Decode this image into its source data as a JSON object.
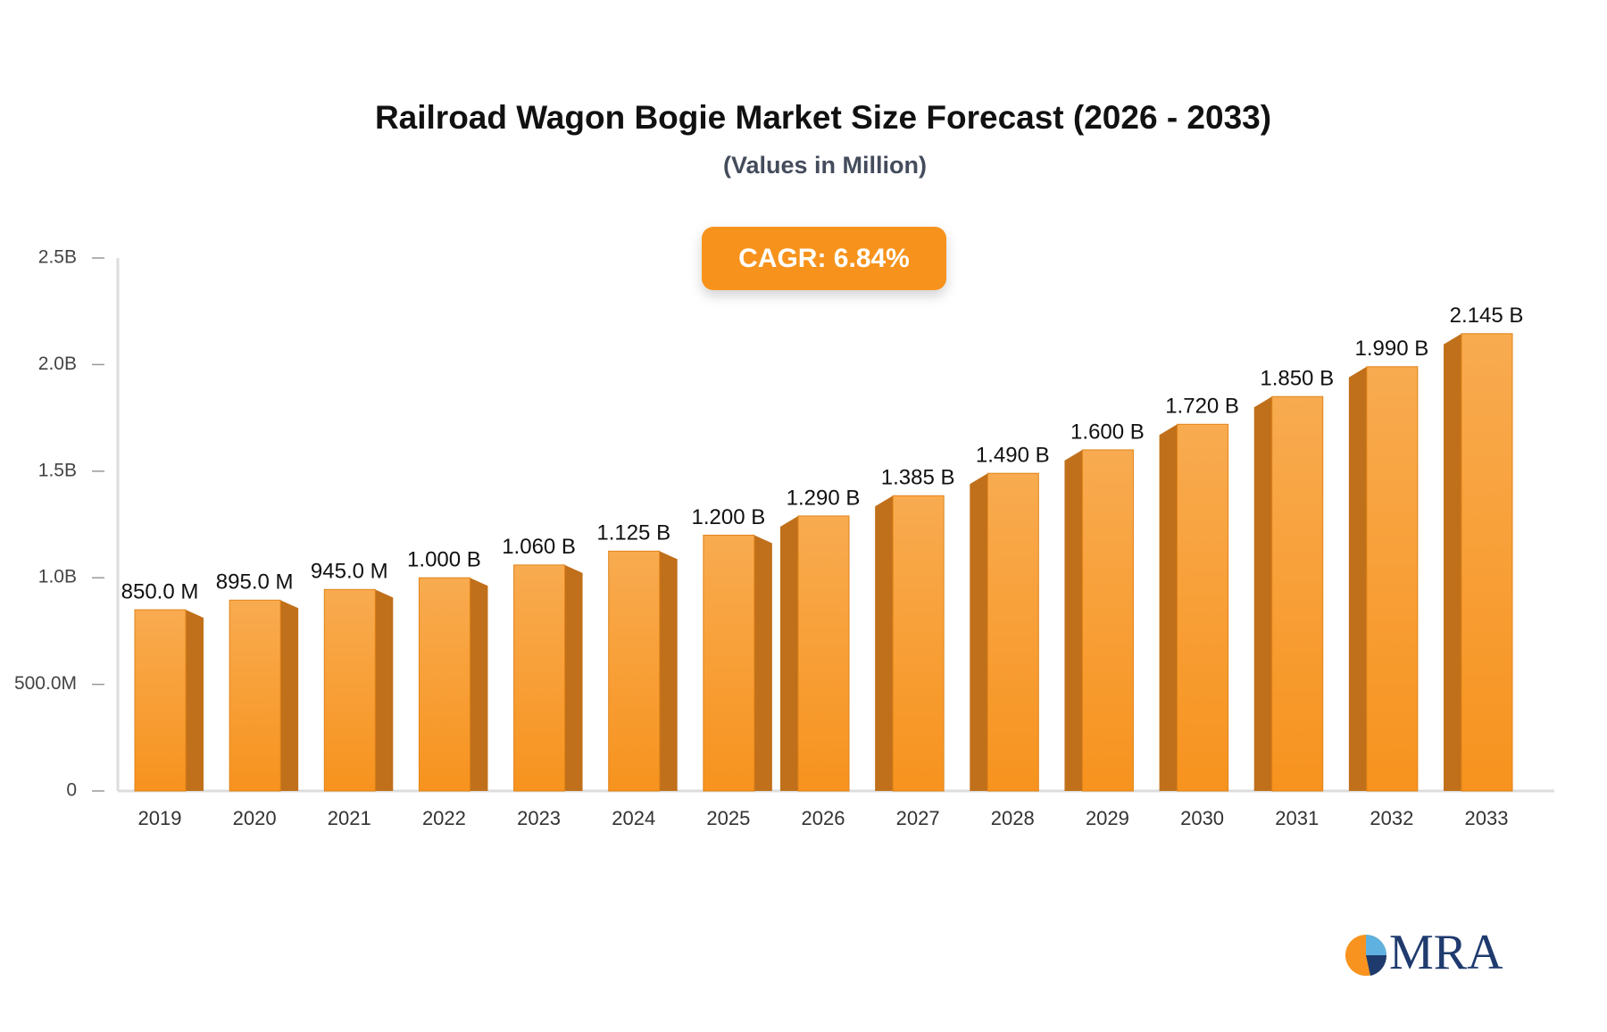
{
  "chart_data": {
    "type": "bar",
    "title": "Railroad Wagon Bogie Market Size Forecast (2026 - 2033)",
    "subtitle": "(Values in Million)",
    "annotation": "CAGR: 6.84%",
    "logo": "MRA",
    "categories": [
      "2019",
      "2020",
      "2021",
      "2022",
      "2023",
      "2024",
      "2025",
      "2026",
      "2027",
      "2028",
      "2029",
      "2030",
      "2031",
      "2032",
      "2033"
    ],
    "values": [
      850,
      895,
      945,
      1000,
      1060,
      1125,
      1200,
      1290,
      1385,
      1490,
      1600,
      1720,
      1850,
      1990,
      2145
    ],
    "value_labels": [
      "850.0 M",
      "895.0 M",
      "945.0 M",
      "1.000 B",
      "1.060 B",
      "1.125 B",
      "1.200 B",
      "1.290 B",
      "1.385 B",
      "1.490 B",
      "1.600 B",
      "1.720 B",
      "1.850 B",
      "1.990 B",
      "2.145 B"
    ],
    "color": "#f59a30",
    "ylim": [
      0,
      2500
    ],
    "yticks": [
      0,
      {
        "value": 500,
        "label": "500.0M"
      },
      {
        "value": 1000,
        "label": "1.0B"
      },
      {
        "value": 1500,
        "label": "1.5B"
      },
      {
        "value": 2000,
        "label": "2.0B"
      },
      {
        "value": 2500,
        "label": "2.5B"
      }
    ],
    "grid": false
  }
}
